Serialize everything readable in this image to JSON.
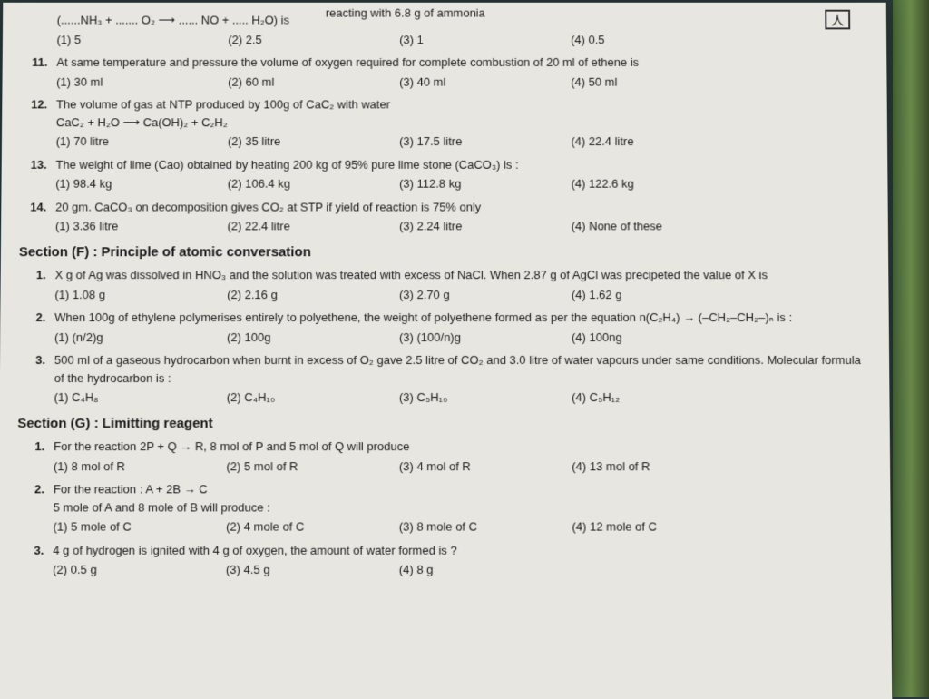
{
  "header": {
    "partial_eq": "(......NH₃ + ....... O₂ ⟶ ...... NO + ..... H₂O) is",
    "partial_top": "reacting with 6.8 g of ammonia",
    "opt1": "(1) 5",
    "opt2": "(2) 2.5",
    "opt3": "(3) 1",
    "opt4": "(4) 0.5",
    "icon": "人"
  },
  "q11": {
    "num": "11.",
    "text": "At same temperature and pressure the volume of oxygen required for complete combustion of 20 ml of ethene is",
    "o1": "(1) 30 ml",
    "o2": "(2) 60 ml",
    "o3": "(3) 40 ml",
    "o4": "(4) 50 ml"
  },
  "q12": {
    "num": "12.",
    "text": "The volume of gas at NTP produced by 100g of CaC₂ with water",
    "eq": "CaC₂ + H₂O ⟶ Ca(OH)₂ + C₂H₂",
    "o1": "(1) 70 litre",
    "o2": "(2) 35 litre",
    "o3": "(3) 17.5 litre",
    "o4": "(4) 22.4 litre"
  },
  "q13": {
    "num": "13.",
    "text": "The weight of lime (Cao) obtained by heating 200 kg of 95% pure lime stone (CaCO₃) is :",
    "o1": "(1) 98.4 kg",
    "o2": "(2) 106.4 kg",
    "o3": "(3) 112.8 kg",
    "o4": "(4) 122.6 kg"
  },
  "q14": {
    "num": "14.",
    "text": "20 gm. CaCO₃ on decomposition gives CO₂ at STP if yield of reaction is 75% only",
    "o1": "(1) 3.36 litre",
    "o2": "(2) 22.4 litre",
    "o3": "(3) 2.24 litre",
    "o4": "(4) None of these"
  },
  "secF": {
    "title": "Section (F) : Principle of atomic conversation",
    "q1": {
      "num": "1.",
      "text": "X g of Ag was dissolved in HNO₃ and the solution was treated with excess of NaCl. When 2.87 g of AgCl was precipeted the value of X is",
      "o1": "(1) 1.08 g",
      "o2": "(2) 2.16 g",
      "o3": "(3) 2.70 g",
      "o4": "(4) 1.62 g"
    },
    "q2": {
      "num": "2.",
      "text": "When 100g of ethylene polymerises entirely to polyethene, the weight of polyethene formed as per the equation n(C₂H₄) → (–CH₂–CH₂–)ₙ is :",
      "o1": "(1) (n/2)g",
      "o2": "(2) 100g",
      "o3": "(3) (100/n)g",
      "o4": "(4) 100ng"
    },
    "q3": {
      "num": "3.",
      "text": "500 ml of a gaseous hydrocarbon when burnt in excess of O₂ gave 2.5 litre of CO₂ and 3.0 litre of water vapours under same conditions. Molecular formula of the hydrocarbon is :",
      "o1": "(1) C₄H₈",
      "o2": "(2) C₄H₁₀",
      "o3": "(3) C₅H₁₀",
      "o4": "(4) C₅H₁₂"
    }
  },
  "secG": {
    "title": "Section (G) : Limitting reagent",
    "q1": {
      "num": "1.",
      "text": "For the reaction 2P + Q → R, 8 mol of P and 5 mol of Q will produce",
      "o1": "(1) 8 mol of R",
      "o2": "(2) 5 mol of R",
      "o3": "(3) 4 mol of R",
      "o4": "(4) 13 mol of R"
    },
    "q2": {
      "num": "2.",
      "text": "For the reaction : A + 2B → C",
      "text2": "5 mole of A and 8 mole of B will produce :",
      "o1": "(1) 5 mole of C",
      "o2": "(2) 4 mole of C",
      "o3": "(3) 8 mole of C",
      "o4": "(4) 12 mole of C"
    },
    "q3": {
      "num": "3.",
      "text": "4 g of hydrogen is ignited with 4 g of oxygen, the amount of water formed is ?",
      "o2": "(2) 0.5 g",
      "o3": "(3) 4.5 g",
      "o4": "(4) 8 g"
    }
  }
}
